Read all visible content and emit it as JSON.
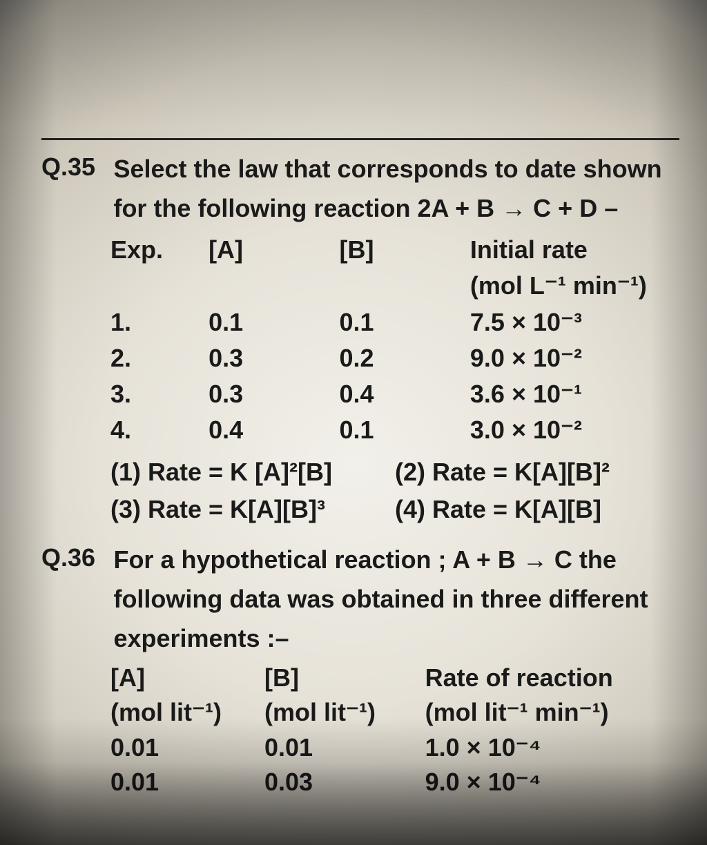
{
  "q35": {
    "number": "Q.35",
    "prompt_line1": "Select the law that corresponds to date shown",
    "prompt_line2": "for the following reaction 2A + B → C + D –",
    "table": {
      "headers": {
        "c1": "Exp.",
        "c2": "[A]",
        "c3": "[B]",
        "c4_top": "Initial rate",
        "c4_bot": "(mol L⁻¹ min⁻¹)"
      },
      "rows": [
        {
          "c1": "1.",
          "c2": "0.1",
          "c3": "0.1",
          "c4": "7.5 × 10⁻³"
        },
        {
          "c1": "2.",
          "c2": "0.3",
          "c3": "0.2",
          "c4": "9.0 × 10⁻²"
        },
        {
          "c1": "3.",
          "c2": "0.3",
          "c3": "0.4",
          "c4": "3.6 × 10⁻¹"
        },
        {
          "c1": "4.",
          "c2": "0.4",
          "c3": "0.1",
          "c4": "3.0 × 10⁻²"
        }
      ]
    },
    "options": {
      "o1": "(1) Rate = K [A]²[B]",
      "o2": "(2) Rate = K[A][B]²",
      "o3": "(3) Rate = K[A][B]³",
      "o4": "(4) Rate = K[A][B]"
    }
  },
  "q36": {
    "number": "Q.36",
    "prompt_line1": "For a hypothetical reaction ; A + B → C the",
    "prompt_line2": "following data was obtained in three different",
    "prompt_line3": "experiments :–",
    "table": {
      "headers": {
        "d1_top": "[A]",
        "d1_bot": "(mol lit⁻¹)",
        "d2_top": "[B]",
        "d2_bot": "(mol lit⁻¹)",
        "d3_top": "Rate of reaction",
        "d3_bot": "(mol lit⁻¹ min⁻¹)"
      },
      "rows": [
        {
          "d1": "0.01",
          "d2": "0.01",
          "d3": "1.0 × 10⁻⁴"
        },
        {
          "d1": "0.01",
          "d2": "0.03",
          "d3": "9.0 × 10⁻⁴"
        }
      ]
    }
  },
  "style": {
    "text_color": "#1a1a1a",
    "rule_color": "#222",
    "font_size_main": 36,
    "font_weight_main": 700
  }
}
